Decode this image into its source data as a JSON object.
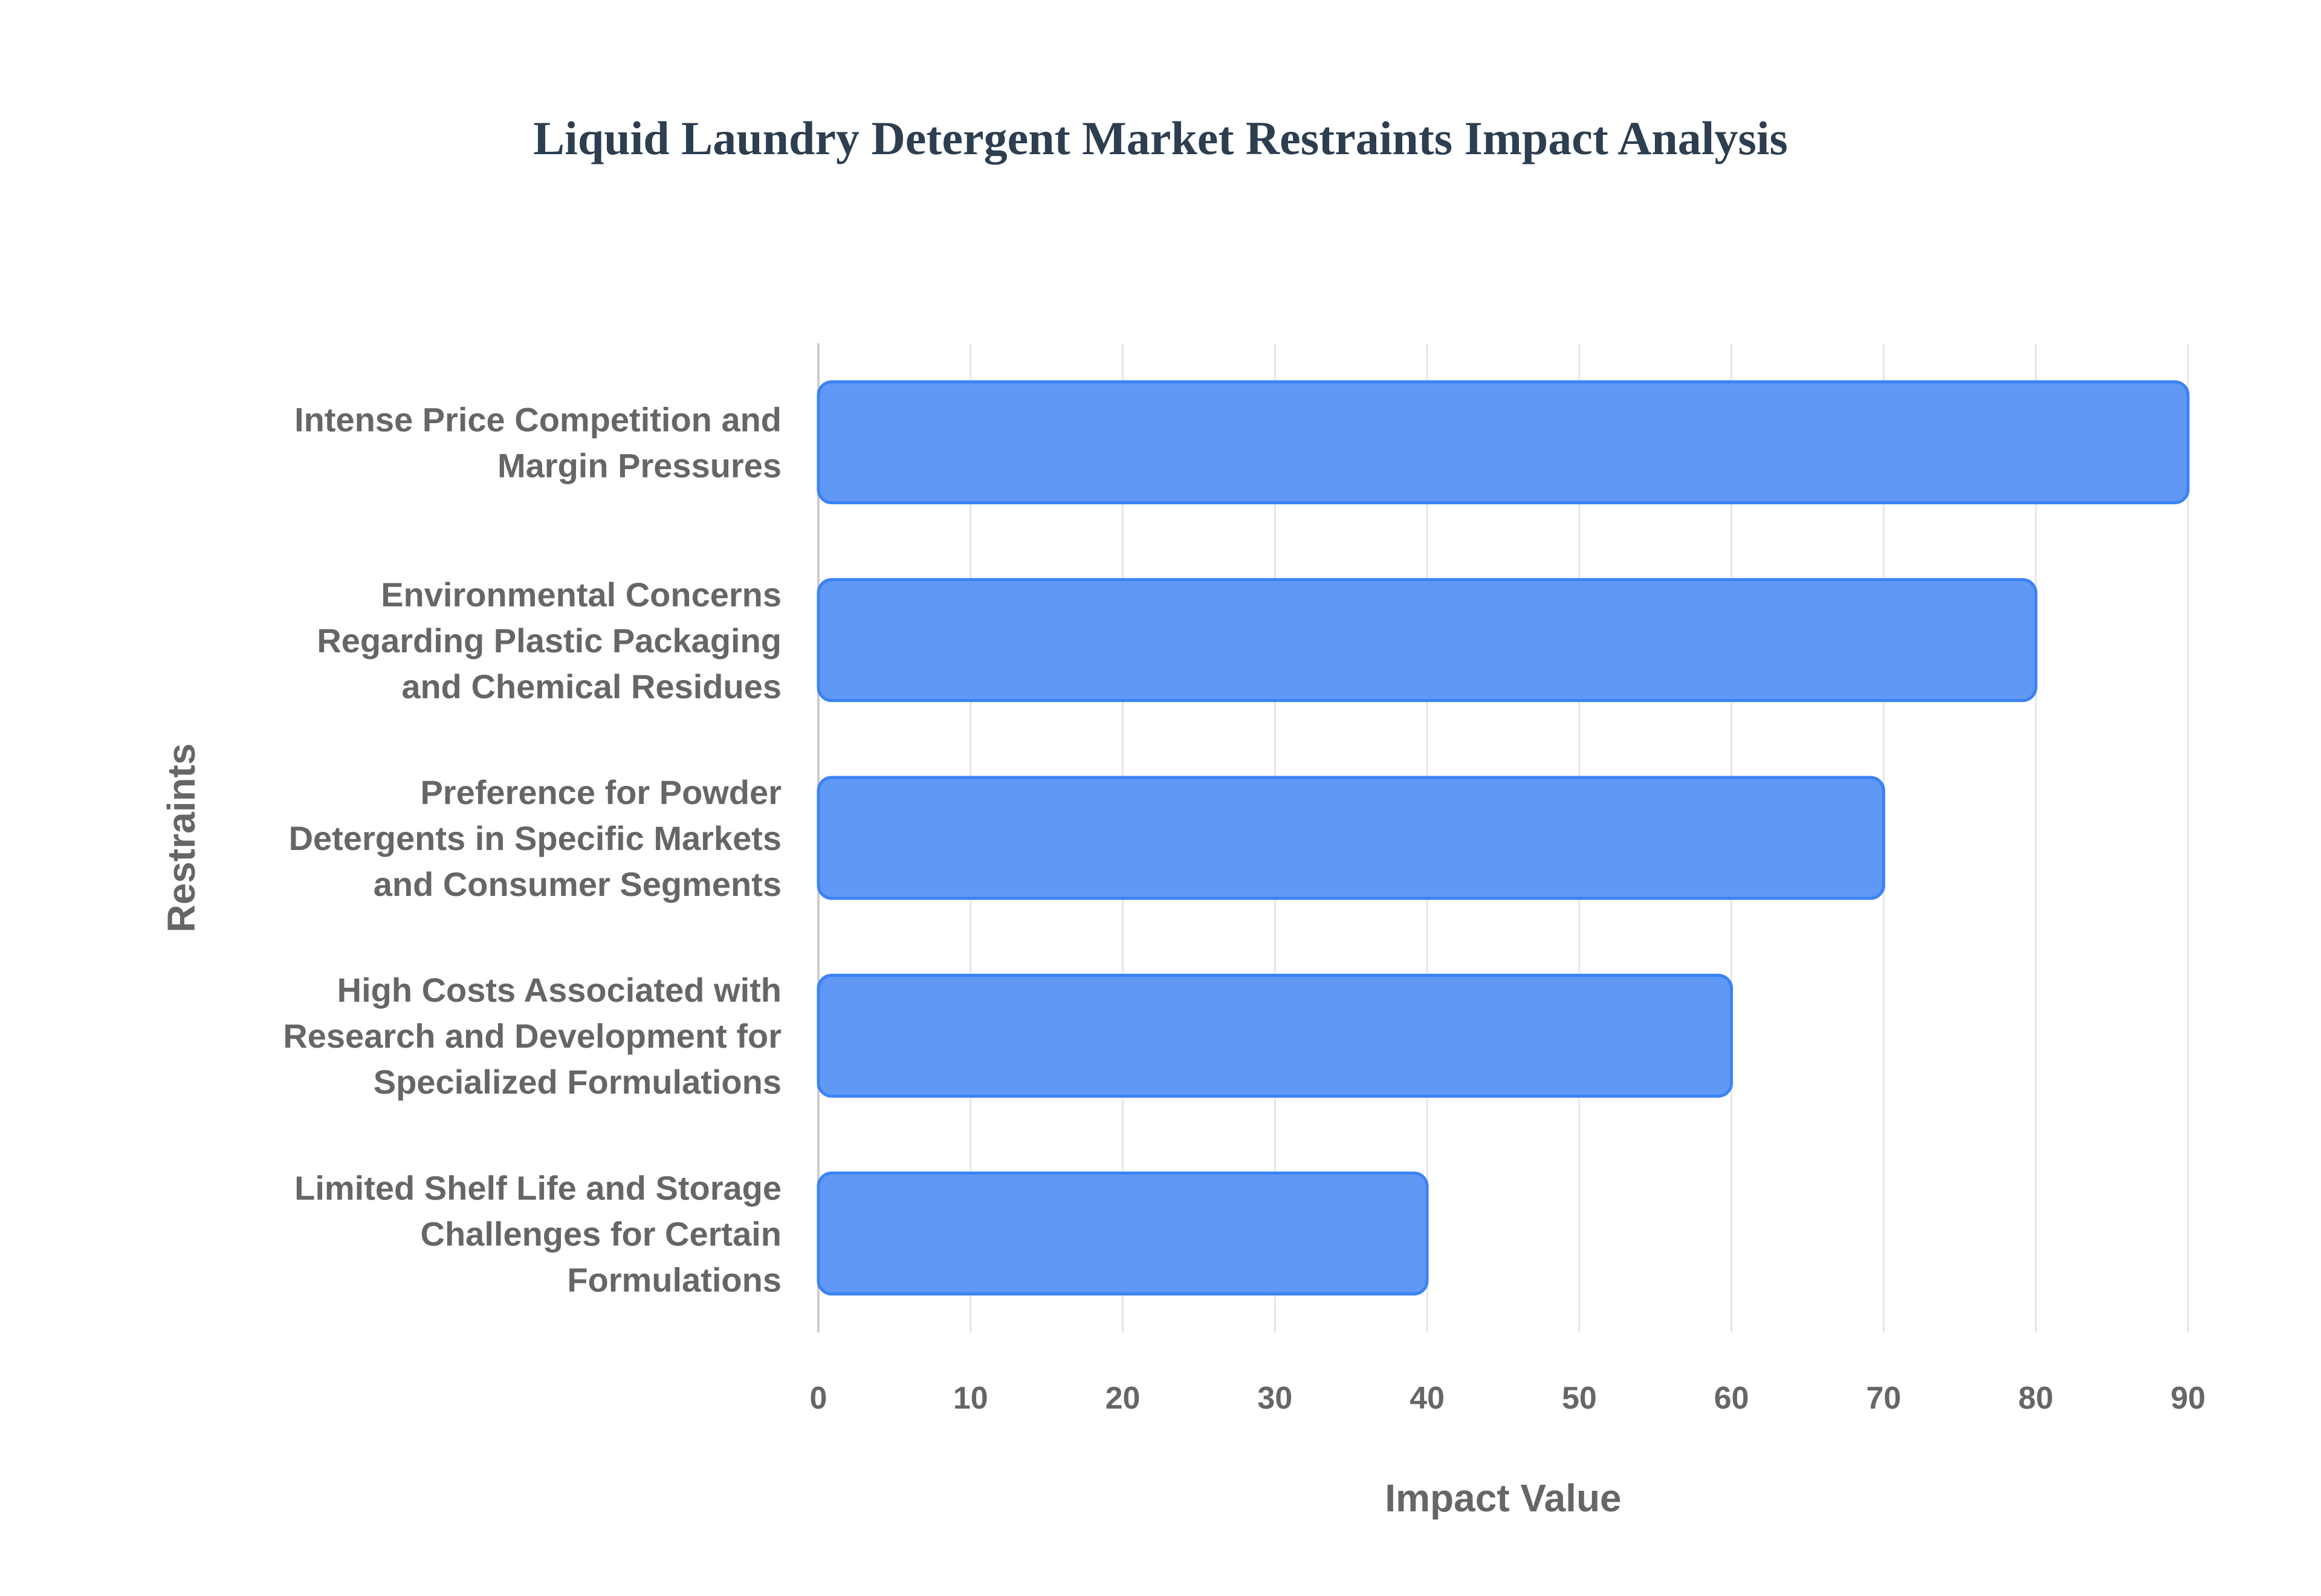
{
  "chart_data": {
    "type": "bar",
    "orientation": "horizontal",
    "title": "Liquid Laundry Detergent Market Restraints Impact Analysis",
    "xlabel": "Impact Value",
    "ylabel": "Restraints",
    "xlim": [
      0,
      90
    ],
    "xticks": [
      0,
      10,
      20,
      30,
      40,
      50,
      60,
      70,
      80,
      90
    ],
    "grid": true,
    "bar_color": "#6099f5",
    "bar_border_color": "#3b82f6",
    "categories": [
      [
        "Intense Price Competition and",
        "Margin Pressures"
      ],
      [
        "Environmental Concerns",
        "Regarding Plastic Packaging",
        "and Chemical Residues"
      ],
      [
        "Preference for Powder",
        "Detergents in Specific Markets",
        "and Consumer Segments"
      ],
      [
        "High Costs Associated with",
        "Research and Development for",
        "Specialized Formulations"
      ],
      [
        "Limited Shelf Life and Storage",
        "Challenges for Certain",
        "Formulations"
      ]
    ],
    "values": [
      90,
      80,
      70,
      60,
      40
    ]
  }
}
